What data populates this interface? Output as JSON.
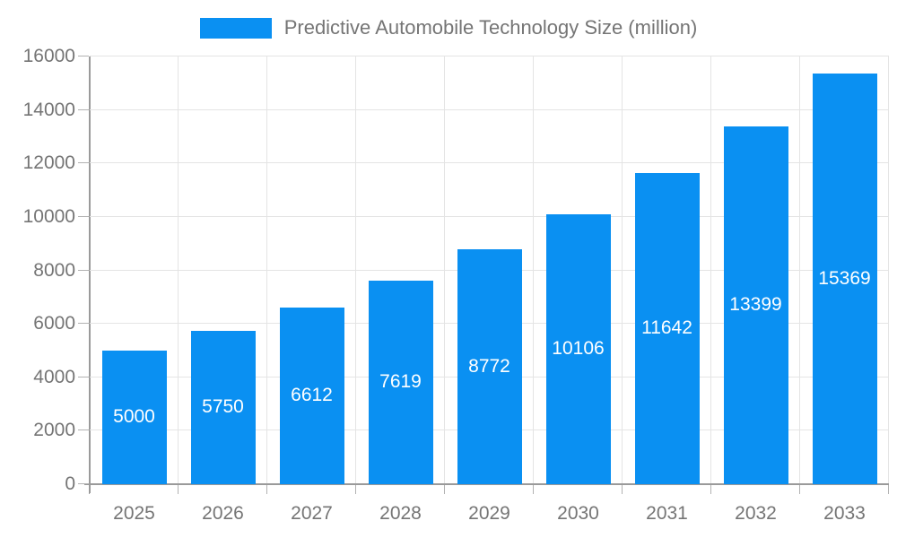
{
  "chart_data": {
    "type": "bar",
    "title": "Predictive Automobile Technology Size (million)",
    "legend_position": "top",
    "categories": [
      "2025",
      "2026",
      "2027",
      "2028",
      "2029",
      "2030",
      "2031",
      "2032",
      "2033"
    ],
    "series": [
      {
        "name": "Predictive Automobile Technology Size (million)",
        "values": [
          5000,
          5750,
          6612,
          7619,
          8772,
          10106,
          11642,
          13399,
          15369
        ]
      }
    ],
    "value_labels": [
      "5000",
      "5750",
      "6612",
      "7619",
      "8772",
      "10106",
      "11642",
      "13399",
      "15369"
    ],
    "xlabel": "",
    "ylabel": "",
    "ylim": [
      0,
      16000
    ],
    "ytick_step": 2000,
    "ytick_labels": [
      "0",
      "2000",
      "4000",
      "6000",
      "8000",
      "10000",
      "12000",
      "14000",
      "16000"
    ],
    "grid": true,
    "colors": {
      "bar": "#0a90f2",
      "value_label": "#ffffff",
      "axis_text": "#757575",
      "legend_text": "#757575",
      "grid_line": "#e4e4e4",
      "axis_line": "#9a9a9a",
      "tick_mark": "#b2b2b2"
    }
  }
}
